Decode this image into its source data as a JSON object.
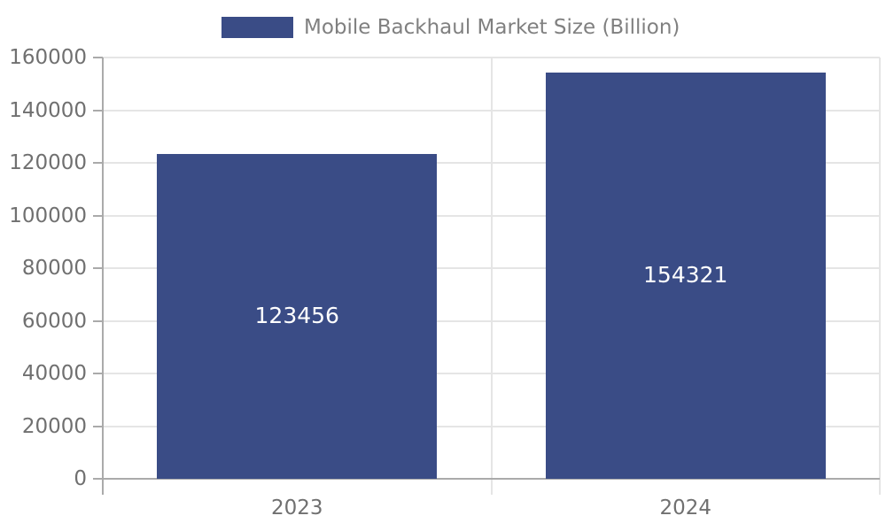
{
  "chart_data": {
    "type": "bar",
    "title": "Mobile Backhaul Market Size (Billion)",
    "categories": [
      "2023",
      "2024"
    ],
    "series": [
      {
        "name": "Mobile Backhaul Market Size (Billion)",
        "values": [
          123456,
          154321
        ],
        "color": "#3a4c86"
      }
    ],
    "bar_labels": [
      "123456",
      "154321"
    ],
    "xlabel": "",
    "ylabel": "",
    "ylim": [
      0,
      160000
    ],
    "ytick_step": 20000,
    "ytick_labels": [
      "0",
      "20000",
      "40000",
      "60000",
      "80000",
      "100000",
      "120000",
      "140000",
      "160000"
    ],
    "grid": true,
    "legend_position": "top-center",
    "colors": {
      "bar": "#3a4c86",
      "grid": "#e5e5e5",
      "axis": "#aaaaaa",
      "tick_label": "#707070",
      "legend_text": "#808080",
      "bar_label": "#ffffff"
    }
  }
}
